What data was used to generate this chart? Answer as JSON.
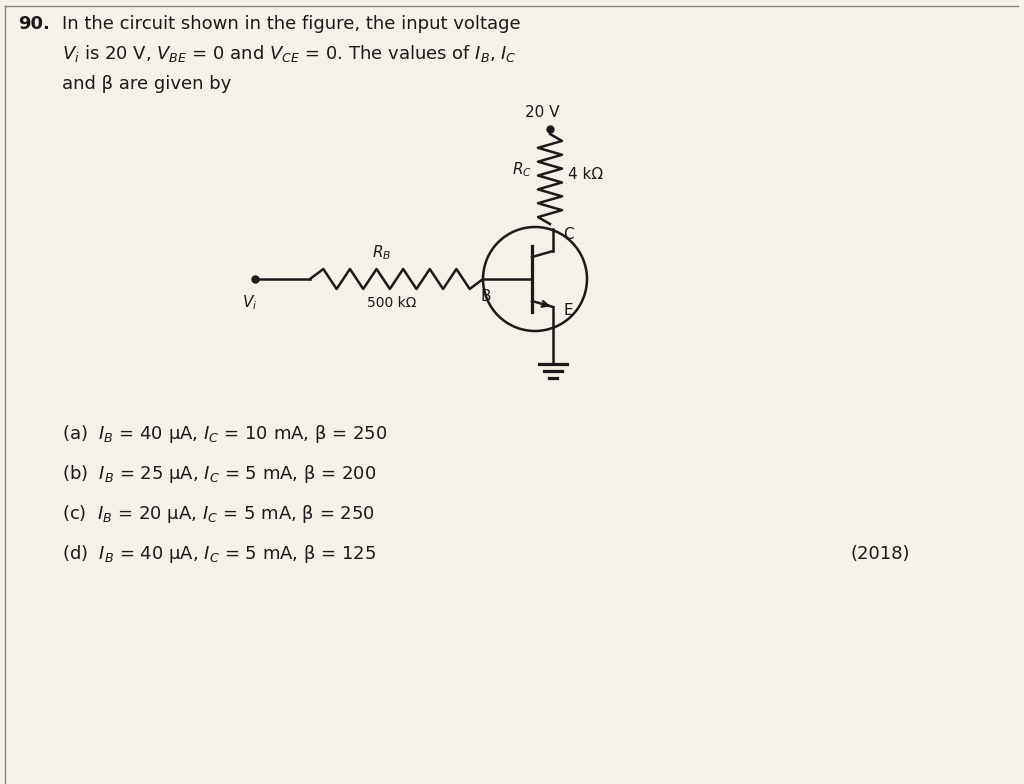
{
  "background_color": "#f5f0e8",
  "question_number": "90.",
  "question_text": "In the circuit shown in the figure, the input voltage",
  "question_text2": "$V_i$ is 20 V, $V_{BE}$ = 0 and $V_{CE}$ = 0. The values of $I_B$, $I_C$",
  "question_text3": "and β are given by",
  "options": [
    "(a)  $I_B$ = 40 μA, $I_C$ = 10 mA, β = 250",
    "(b)  $I_B$ = 25 μA, $I_C$ = 5 mA, β = 200",
    "(c)  $I_B$ = 20 μA, $I_C$ = 5 mA, β = 250",
    "(d)  $I_B$ = 40 μA, $I_C$ = 5 mA, β = 125"
  ],
  "year": "(2018)",
  "text_color": "#1a1a1a",
  "circuit_color": "#1a1a1a",
  "vi_voltage": "20 V",
  "rc_label": "$R_C$",
  "rc_value": "4 kΩ",
  "rb_label": "$R_B$",
  "rb_value": "500 kΩ",
  "vi_label": "$V_i$",
  "node_labels": [
    "B",
    "C",
    "E"
  ]
}
